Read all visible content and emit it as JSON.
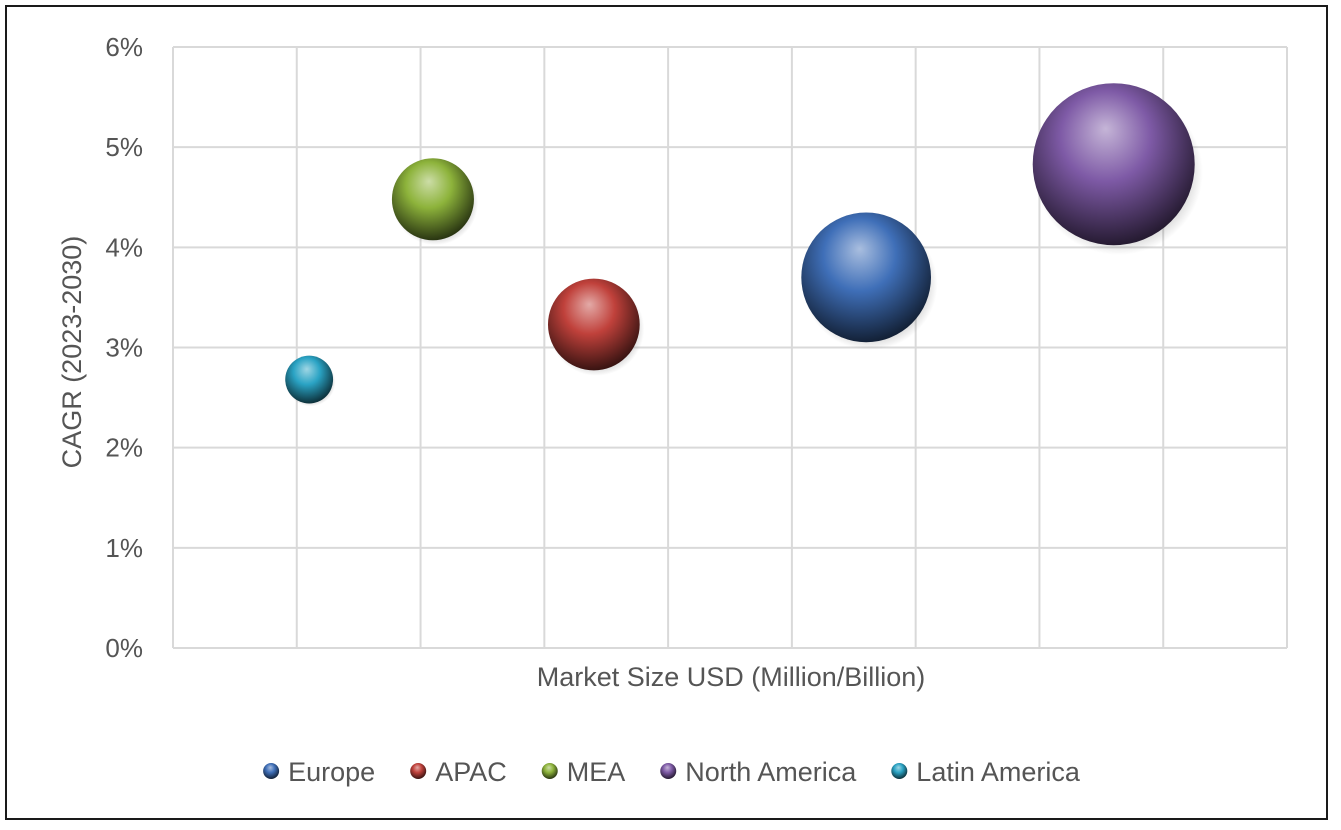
{
  "chart_data": {
    "type": "bubble",
    "title": "",
    "xlabel": "Market Size USD (Million/Billion)",
    "ylabel": "CAGR (2023-2030)",
    "ylim": [
      0,
      6
    ],
    "y_ticks": [
      "0%",
      "1%",
      "2%",
      "3%",
      "4%",
      "5%",
      "6%"
    ],
    "x_ticks_labeled": false,
    "grid": true,
    "legend_position": "bottom",
    "series": [
      {
        "name": "Europe",
        "x": 5.6,
        "y": 3.7,
        "size": 25,
        "color": "#3f6fb8"
      },
      {
        "name": "APAC",
        "x": 3.4,
        "y": 3.23,
        "size": 12.5,
        "color": "#c0413b"
      },
      {
        "name": "MEA",
        "x": 2.1,
        "y": 4.48,
        "size": 10,
        "color": "#8db33b"
      },
      {
        "name": "North America",
        "x": 7.6,
        "y": 4.83,
        "size": 39,
        "color": "#7e5aa6"
      },
      {
        "name": "Latin America",
        "x": 1.1,
        "y": 2.68,
        "size": 3.4,
        "color": "#2aa3c4"
      }
    ]
  }
}
